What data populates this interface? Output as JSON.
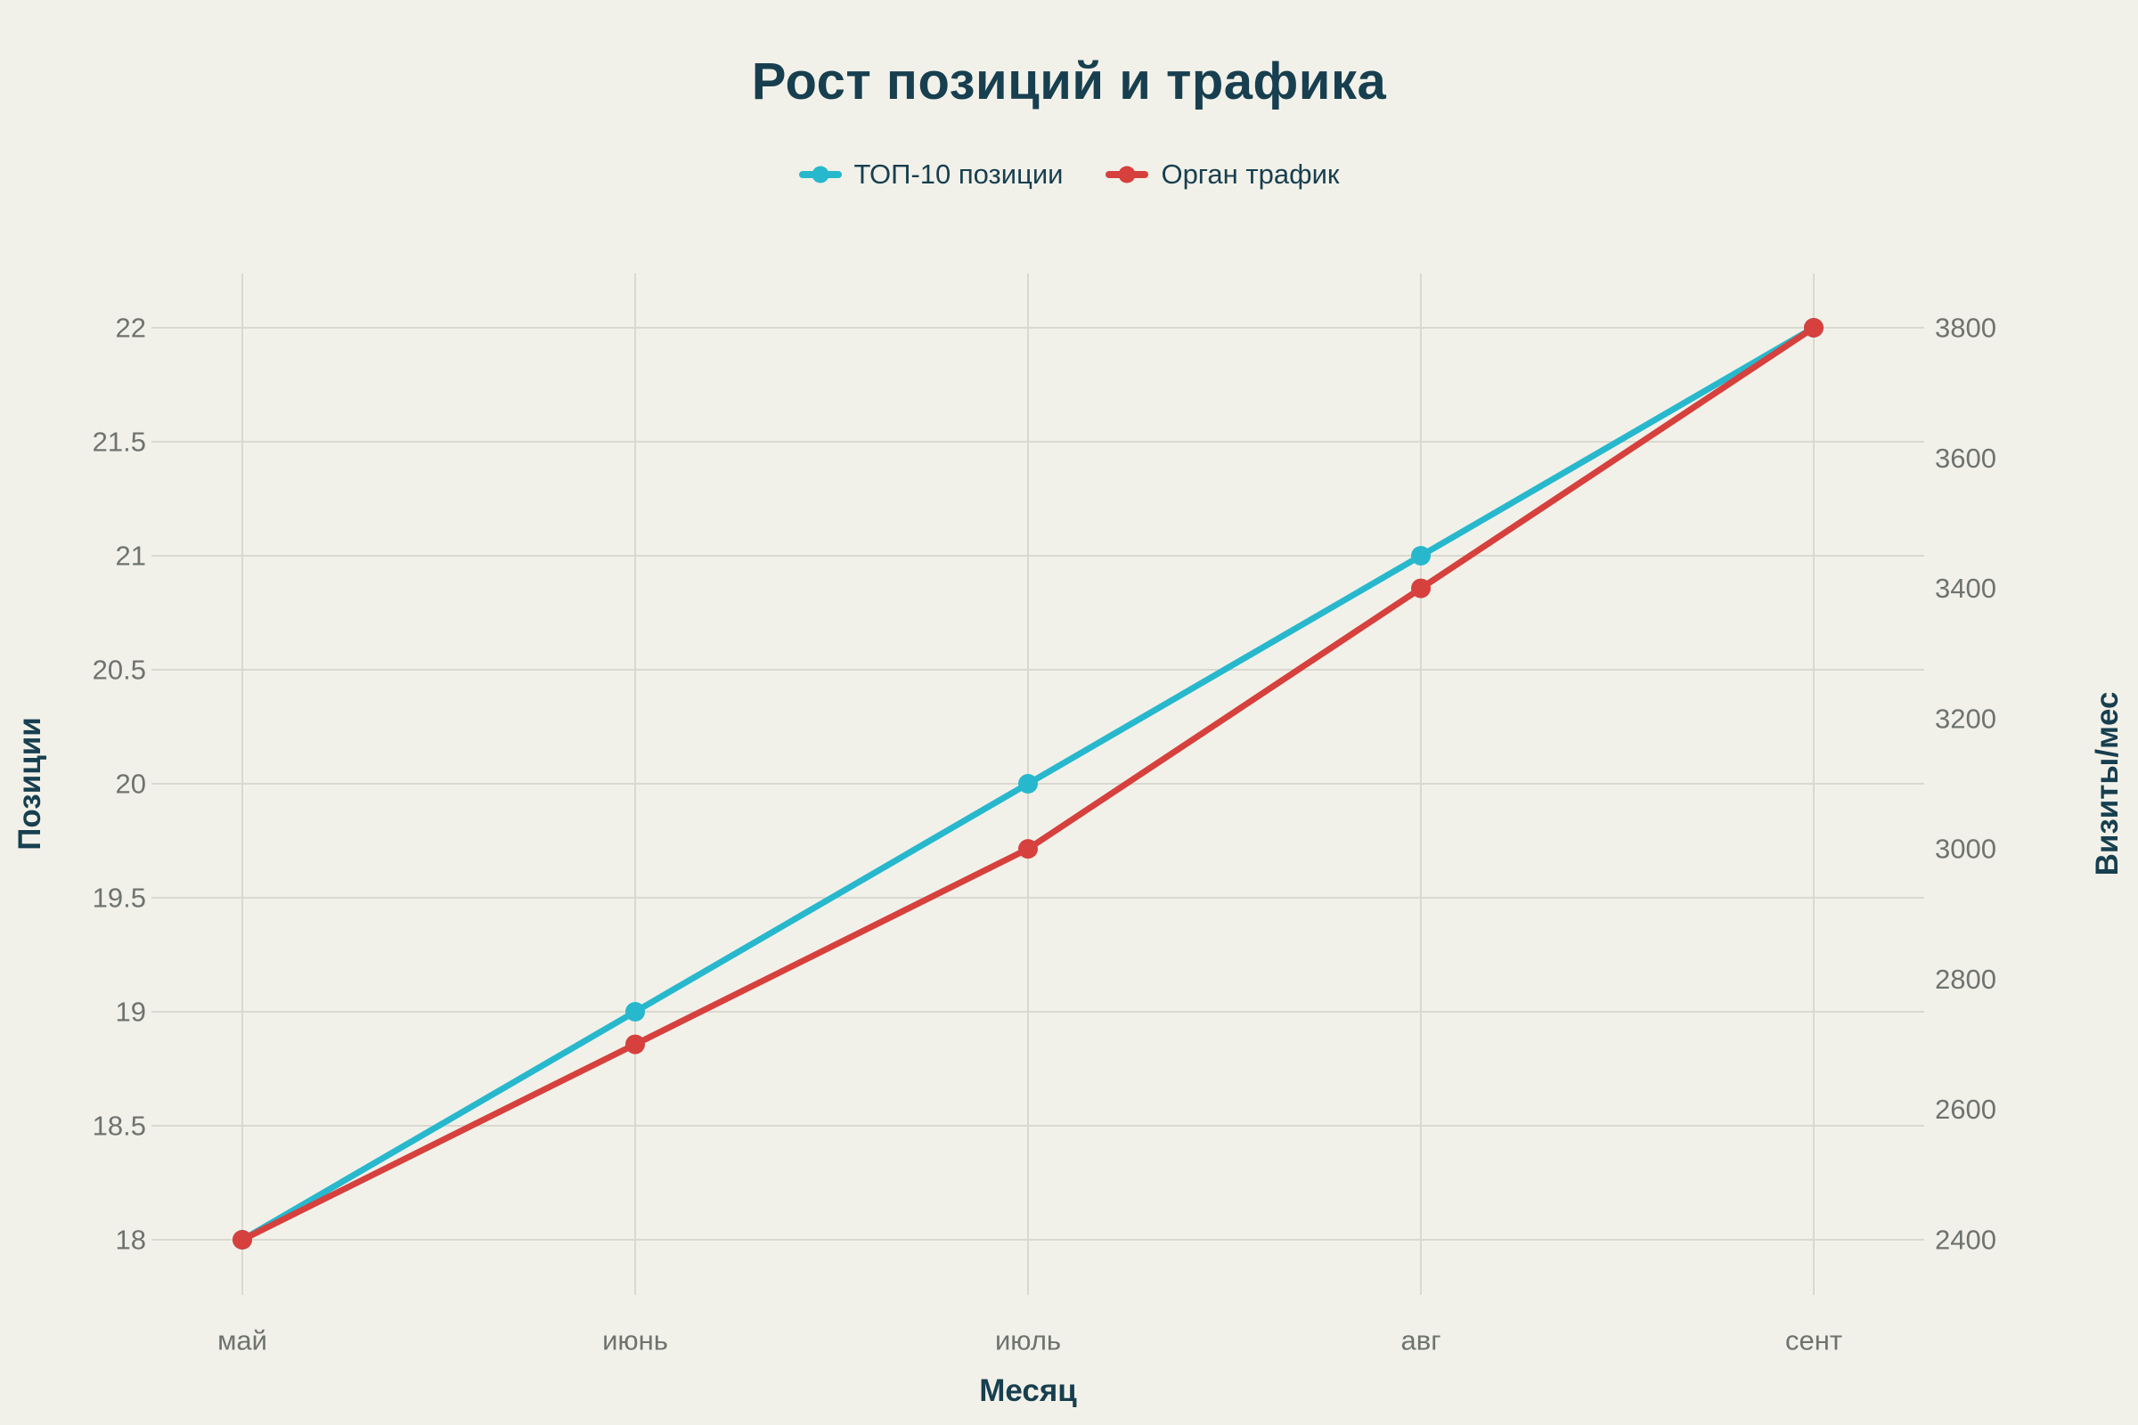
{
  "chart_data": {
    "type": "line",
    "title": "Рост позиций и трафика",
    "xlabel": "Месяц",
    "ylabel_left": "Позиции",
    "ylabel_right": "Визиты/мес",
    "categories": [
      "май",
      "июнь",
      "июль",
      "авг",
      "сент"
    ],
    "series": [
      {
        "name": "ТОП-10 позиции",
        "axis": "left",
        "color": "#27b8cd",
        "values": [
          18,
          19,
          20,
          21,
          22
        ]
      },
      {
        "name": "Орган трафик",
        "axis": "right",
        "color": "#d6403d",
        "values": [
          2400,
          2700,
          3000,
          3400,
          3800
        ]
      }
    ],
    "left_axis": {
      "min": 18,
      "max": 22,
      "ticks": [
        18,
        18.5,
        19,
        19.5,
        20,
        20.5,
        21,
        21.5,
        22
      ]
    },
    "right_axis": {
      "min": 2400,
      "max": 3800,
      "ticks": [
        2400,
        2600,
        2800,
        3000,
        3200,
        3400,
        3600,
        3800
      ]
    },
    "legend_position": "top",
    "grid": true,
    "colors": {
      "background": "#f2f1e9",
      "grid": "#d9d9cf",
      "tick_text": "#6e7370",
      "title_text": "#173f4f"
    }
  }
}
